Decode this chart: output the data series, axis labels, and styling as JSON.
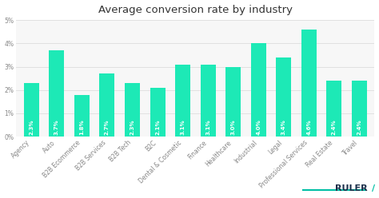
{
  "title": "Average conversion rate by industry",
  "categories": [
    "Agency",
    "Auto",
    "B2B Ecommerce",
    "B2B Services",
    "B2B Tech",
    "B2C",
    "Dental & Cosmetic",
    "Finance",
    "Healthcare",
    "Industrial",
    "Legal",
    "Professional Services",
    "Real Estate",
    "Travel"
  ],
  "values": [
    2.3,
    3.7,
    1.8,
    2.7,
    2.3,
    2.1,
    3.1,
    3.1,
    3.0,
    4.0,
    3.4,
    4.6,
    2.4,
    2.4
  ],
  "bar_color": "#1de9b6",
  "label_color": "#ffffff",
  "background_color": "#ffffff",
  "plot_bg_color": "#f7f7f7",
  "ylim": [
    0,
    5
  ],
  "yticks": [
    0,
    1,
    2,
    3,
    4,
    5
  ],
  "ytick_labels": [
    "0%",
    "1%",
    "2%",
    "3%",
    "4%",
    "5%"
  ],
  "title_fontsize": 9.5,
  "bar_label_fontsize": 5.0,
  "tick_fontsize": 5.5,
  "grid_color": "#dddddd",
  "logo_text": "RULER",
  "logo_slash": "/",
  "logo_color": "#1a2e4a",
  "logo_slash_color": "#00bfa5"
}
